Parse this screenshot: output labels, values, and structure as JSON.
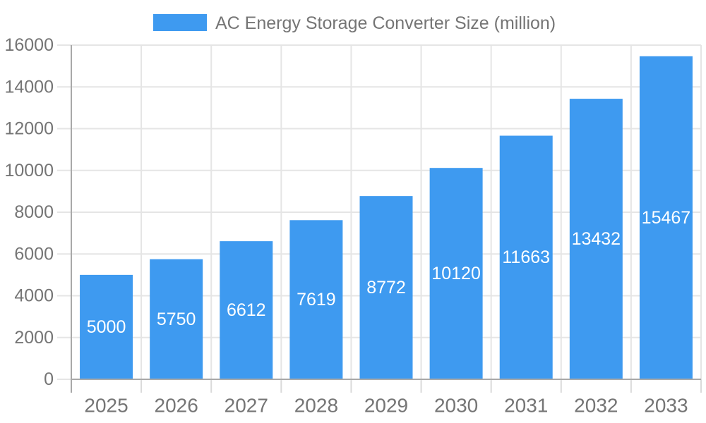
{
  "legend": {
    "label": "AC Energy Storage Converter Size (million)"
  },
  "chart_data": {
    "type": "bar",
    "title": "AC Energy Storage Converter Size (million)",
    "categories": [
      "2025",
      "2026",
      "2027",
      "2028",
      "2029",
      "2030",
      "2031",
      "2032",
      "2033"
    ],
    "series": [
      {
        "name": "AC Energy Storage Converter Size (million)",
        "values": [
          5000,
          5750,
          6612,
          7619,
          8772,
          10120,
          11663,
          13432,
          15467
        ]
      }
    ],
    "value_labels": [
      "5000",
      "5750",
      "6612",
      "7619",
      "8772",
      "10120",
      "11663",
      "13432",
      "15467"
    ],
    "xlabel": "",
    "ylabel": "",
    "ylim": [
      0,
      16000
    ],
    "ytick_step": 2000,
    "ytick_labels": [
      "0",
      "2000",
      "4000",
      "6000",
      "8000",
      "10000",
      "12000",
      "14000",
      "16000"
    ],
    "legend_position": "top-center",
    "grid": true,
    "colors": {
      "bar": "#3E9AF0",
      "grid_line": "#e5e5e5",
      "axis_line": "#a9a9a9",
      "tick_line": "#dadada",
      "axis_text": "#757575",
      "value_text": "#ffffff"
    }
  }
}
